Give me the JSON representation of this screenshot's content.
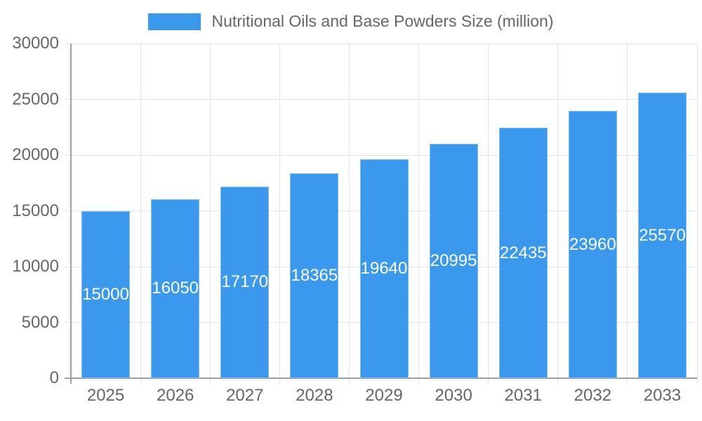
{
  "chart_data": {
    "type": "bar",
    "title": "Nutritional Oils and Base Powders Size (million)",
    "categories": [
      "2025",
      "2026",
      "2027",
      "2028",
      "2029",
      "2030",
      "2031",
      "2032",
      "2033"
    ],
    "values": [
      15000,
      16050,
      17170,
      18365,
      19640,
      20995,
      22435,
      23960,
      25570
    ],
    "xlabel": "",
    "ylabel": "",
    "ylim": [
      0,
      30000
    ],
    "yticks": [
      0,
      5000,
      10000,
      15000,
      20000,
      25000,
      30000
    ],
    "grid": true,
    "legend_position": "top",
    "value_labels": "centered-white-inside-bars"
  },
  "legend": {
    "label": "Nutritional Oils and Base Powders Size (million)"
  },
  "colors": {
    "bar": "#3A99EC",
    "grid": "#e3e3e3",
    "axis": "#a0a0a0",
    "tick_label": "#666666",
    "value_label": "#ffffff",
    "legend_text": "#666666"
  }
}
